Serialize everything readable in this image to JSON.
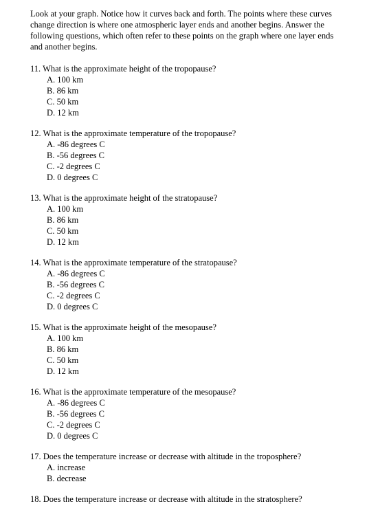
{
  "intro": "Look at your graph. Notice how it curves back and forth. The points where these curves change direction is where one atmospheric layer ends and another begins. Answer the following questions, which often refer to these points on the graph where one layer ends and another begins.",
  "questions": [
    {
      "num": "11.",
      "text": "What is the approximate height of the tropopause?",
      "choices": [
        "A.  100 km",
        "B.  86 km",
        "C.  50 km",
        "D.  12 km"
      ]
    },
    {
      "num": "12.",
      "text": "What is the approximate temperature of the tropopause?",
      "choices": [
        "A.  -86 degrees C",
        "B.  -56 degrees C",
        "C.  -2 degrees C",
        "D.  0 degrees C"
      ]
    },
    {
      "num": "13.",
      "text": "What is the approximate height of the stratopause?",
      "choices": [
        "A.  100 km",
        "B.  86 km",
        "C.  50 km",
        "D.  12 km"
      ]
    },
    {
      "num": "14.",
      "text": "What is the approximate temperature of the stratopause?",
      "choices": [
        "A.  -86 degrees C",
        "B.  -56 degrees C",
        "C.  -2 degrees C",
        "D.  0 degrees C"
      ]
    },
    {
      "num": "15.",
      "text": "What is the approximate height of the mesopause?",
      "choices": [
        "A.  100 km",
        "B.  86 km",
        "C.  50 km",
        "D.  12 km"
      ]
    },
    {
      "num": "16.",
      "text": "What is the approximate temperature of the mesopause?",
      "choices": [
        "A.  -86 degrees C",
        "B.  -56 degrees C",
        "C.  -2 degrees C",
        "D.  0 degrees C"
      ]
    },
    {
      "num": "17.",
      "text": "Does the temperature increase or decrease with altitude in the troposphere?",
      "choices": [
        "A.  increase",
        "B.  decrease"
      ]
    },
    {
      "num": "18.",
      "text": "Does the temperature increase or decrease with altitude in the stratosphere?",
      "choices": []
    }
  ]
}
